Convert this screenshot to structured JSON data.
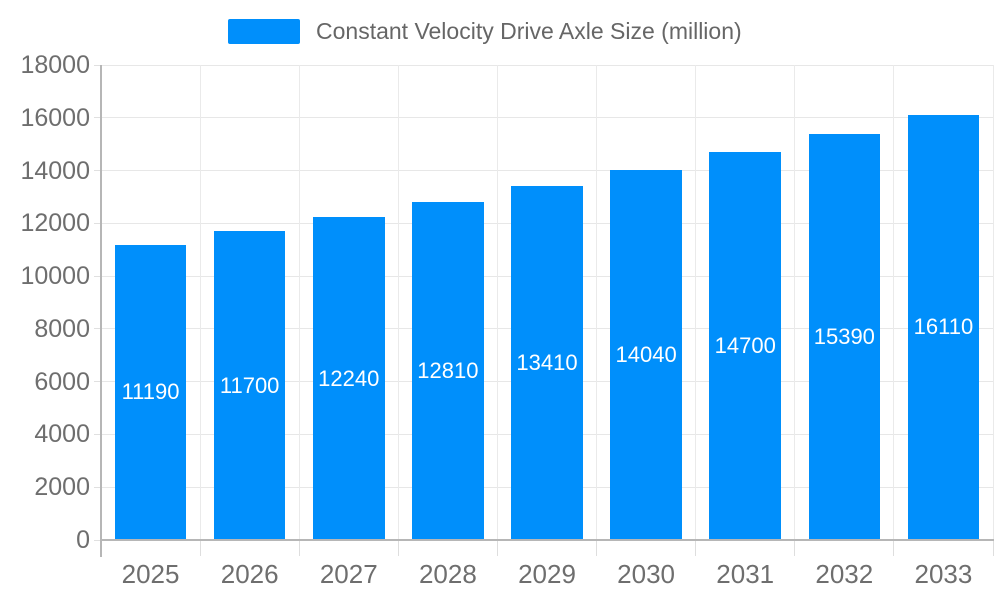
{
  "legend": {
    "label": "Constant Velocity Drive Axle Size (million)",
    "swatch_color": "#008FFB"
  },
  "chart_data": {
    "type": "bar",
    "title": "Constant Velocity Drive Axle Size (million)",
    "series_name": "Constant Velocity Drive Axle Size (million)",
    "categories": [
      "2025",
      "2026",
      "2027",
      "2028",
      "2029",
      "2030",
      "2031",
      "2032",
      "2033"
    ],
    "values": [
      11190,
      11700,
      12240,
      12810,
      13410,
      14040,
      14700,
      15390,
      16110
    ],
    "data_labels": [
      "11190",
      "11700",
      "12240",
      "12810",
      "13410",
      "14040",
      "14700",
      "15390",
      "16110"
    ],
    "ylim": [
      0,
      18000
    ],
    "ytick_step": 2000,
    "ytick_labels": [
      "0",
      "2000",
      "4000",
      "6000",
      "8000",
      "10000",
      "12000",
      "14000",
      "16000",
      "18000"
    ],
    "xlabel": "",
    "ylabel": "",
    "grid": true,
    "legend_position": "top",
    "bar_color": "#008FFB",
    "data_label_color": "#ffffff",
    "axis_label_color": "#6e6e6e",
    "gridline_color": "#e7e7e7",
    "axis_line_color": "#b6b6b6"
  }
}
